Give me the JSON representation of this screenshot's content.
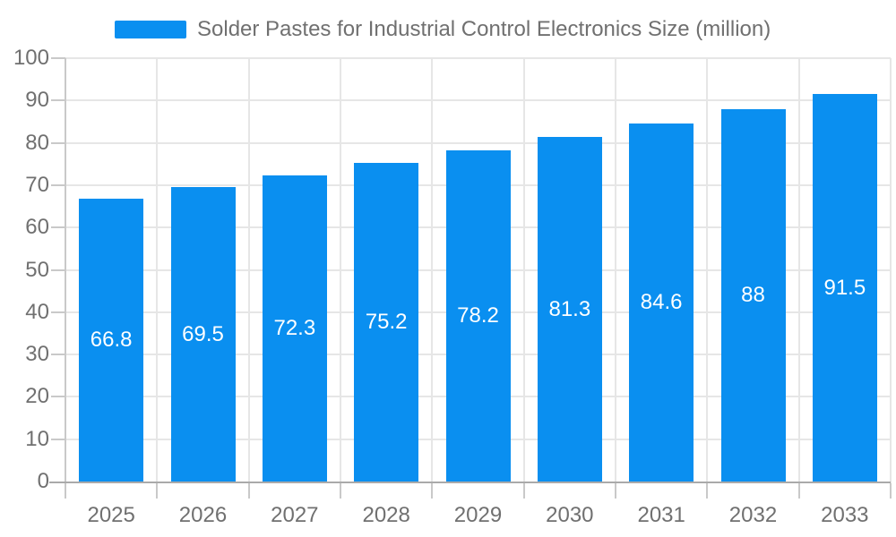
{
  "chart_data": {
    "type": "bar",
    "title": "Solder Pastes for Industrial Control Electronics Size (million)",
    "legend": [
      "Solder Pastes for Industrial Control Electronics Size (million)"
    ],
    "legend_position": "top-center",
    "categories": [
      "2025",
      "2026",
      "2027",
      "2028",
      "2029",
      "2030",
      "2031",
      "2032",
      "2033"
    ],
    "values": [
      66.8,
      69.5,
      72.3,
      75.2,
      78.2,
      81.3,
      84.6,
      88,
      91.5
    ],
    "value_labels": [
      "66.8",
      "69.5",
      "72.3",
      "75.2",
      "78.2",
      "81.3",
      "84.6",
      "88",
      "91.5"
    ],
    "xlabel": "",
    "ylabel": "",
    "ylim": [
      0,
      100
    ],
    "yticks": [
      0,
      10,
      20,
      30,
      40,
      50,
      60,
      70,
      80,
      90,
      100
    ],
    "grid": true,
    "colors": {
      "bar": "#0a8ff0",
      "value_label": "#ffffff",
      "axis_text": "#707070",
      "grid_line": "#e6e6e6",
      "axis_line_x": "#aaaaaa",
      "axis_line_y": "#c9c9c9",
      "tick": "#c9c9c9",
      "background": "#ffffff"
    }
  }
}
